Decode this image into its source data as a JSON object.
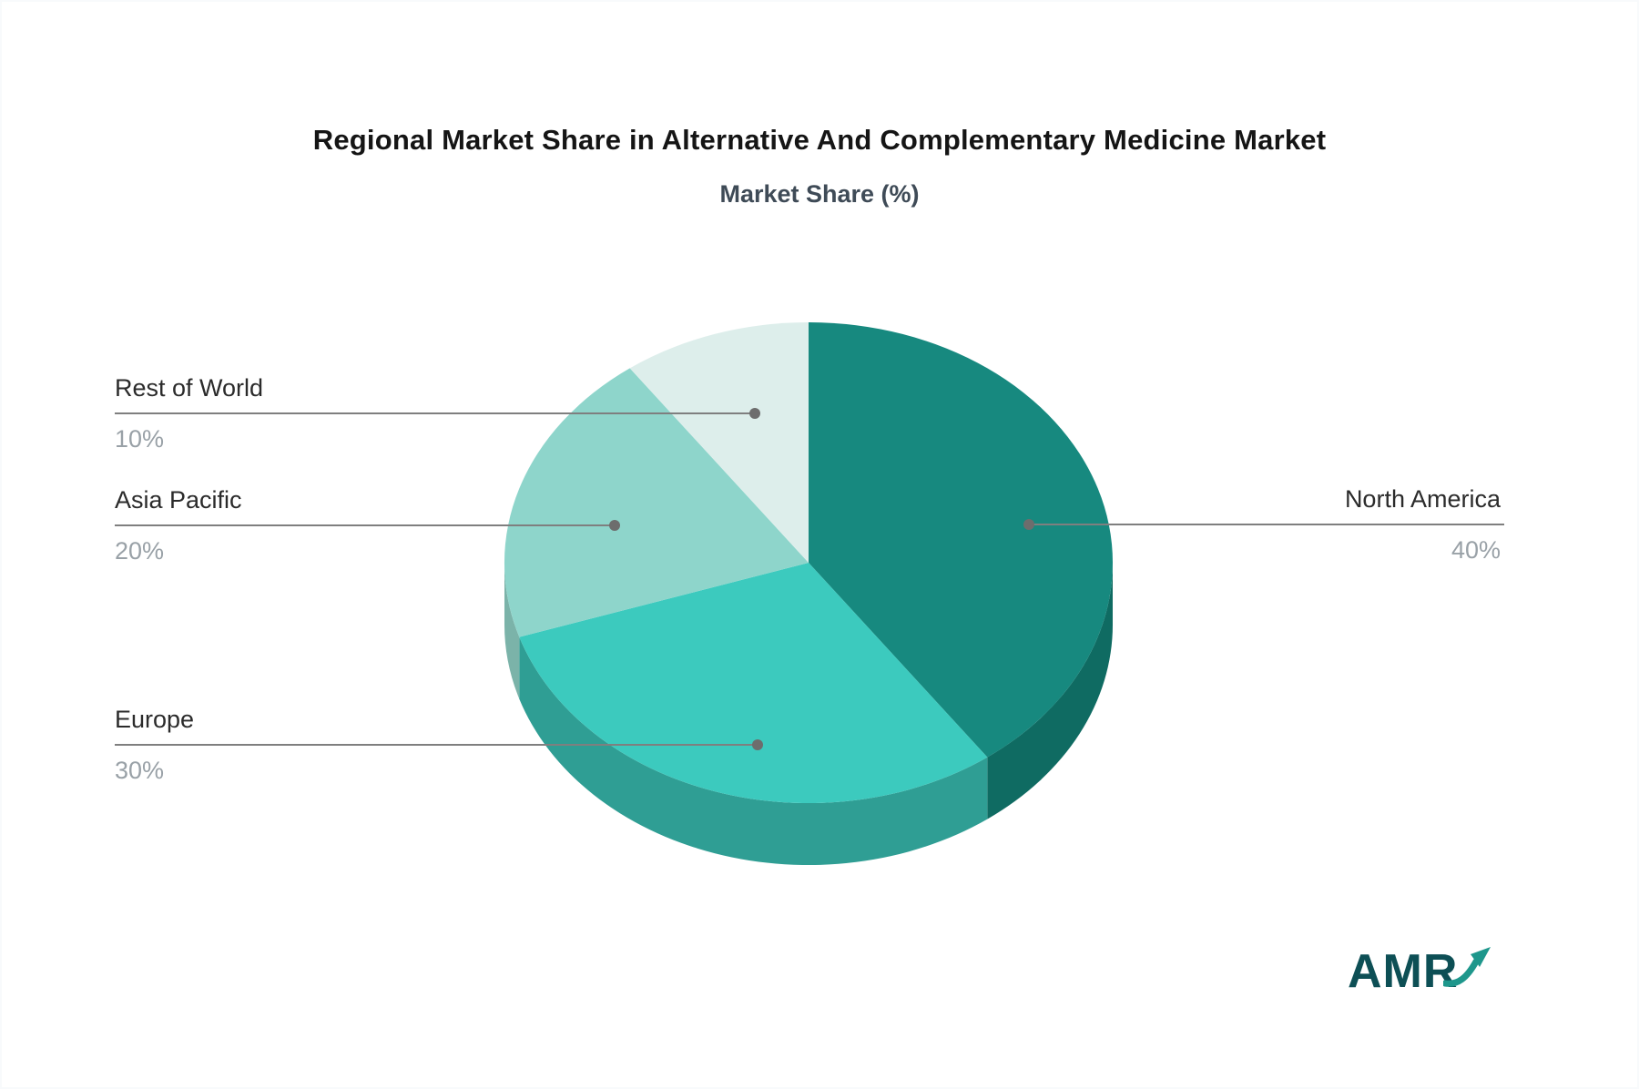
{
  "page": {
    "background_color": "#ffffff",
    "border_color": "#f8fafc"
  },
  "chart_data": {
    "type": "pie",
    "style": "3d-pie",
    "title": "Regional Market Share in Alternative And Complementary Medicine Market",
    "subtitle": "Market Share (%)",
    "unit": "%",
    "direction": "clockwise",
    "start_angle_deg": 0,
    "legend_position": "callout-labels",
    "slices": [
      {
        "label": "North America",
        "value": 40,
        "pct_label": "40%",
        "color": "#17897f",
        "side_color": "#0f6b62",
        "callout_side": "right"
      },
      {
        "label": "Europe",
        "value": 30,
        "pct_label": "30%",
        "color": "#3ccabe",
        "side_color": "#2f9e94",
        "callout_side": "left"
      },
      {
        "label": "Asia Pacific",
        "value": 20,
        "pct_label": "20%",
        "color": "#8ed5cb",
        "side_color": "#7bb3a9",
        "callout_side": "left"
      },
      {
        "label": "Rest of World",
        "value": 10,
        "pct_label": "10%",
        "color": "#ddeeeb",
        "side_color": "#bcd8d3",
        "callout_side": "left"
      }
    ],
    "label_text_color": "#2b2b2b",
    "pct_text_color": "#99a1a7",
    "leader_line_color": "#7f7f7f",
    "leader_dot_color": "#6d6d6d"
  },
  "logo": {
    "text": "AMR",
    "text_color": "#0d4f55",
    "arrow_color": "#1e978c"
  }
}
